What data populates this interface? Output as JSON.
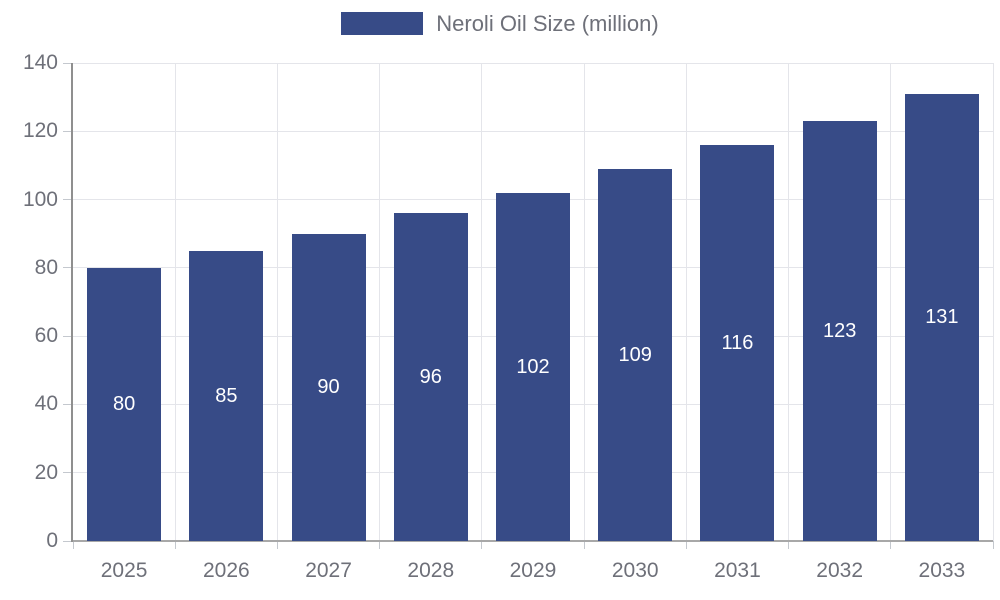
{
  "legend": {
    "label": "Neroli Oil Size (million)"
  },
  "chart_data": {
    "type": "bar",
    "title": "",
    "series_name": "Neroli Oil Size (million)",
    "categories": [
      "2025",
      "2026",
      "2027",
      "2028",
      "2029",
      "2030",
      "2031",
      "2032",
      "2033"
    ],
    "values": [
      80,
      85,
      90,
      96,
      102,
      109,
      116,
      123,
      131
    ],
    "xlabel": "",
    "ylabel": "",
    "ylim": [
      0,
      140
    ],
    "yticks": [
      0,
      20,
      40,
      60,
      80,
      100,
      120,
      140
    ],
    "grid": true,
    "legend_position": "top-center",
    "bar_value_labels": "inside-center"
  },
  "colors": {
    "bar": "#374B87",
    "bar_label": "#FFFFFF",
    "axis_text": "#6E7079",
    "legend_text": "#6E7079",
    "grid_line": "#E4E5EA",
    "axis_line_left": "#8F8F8F",
    "axis_line_bottom": "#A8A8A8",
    "tick": "#C4C8CE",
    "background": "#FFFFFF"
  }
}
